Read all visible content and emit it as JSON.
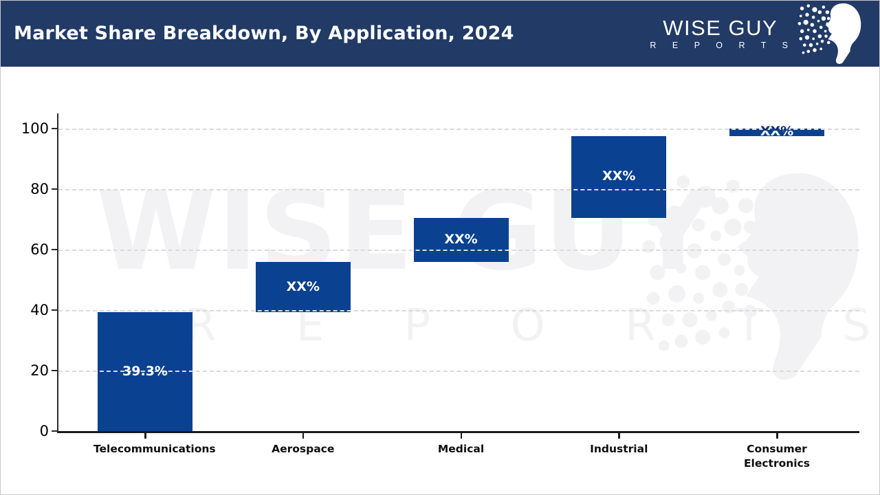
{
  "header": {
    "title": "Market Share Breakdown, By Application, 2024",
    "logo": {
      "line1": "WISE GUY",
      "line2": "R E P O R T S"
    }
  },
  "watermark": {
    "line1": "WISE GUY",
    "line2": "R E P O R T S"
  },
  "chart_data": {
    "type": "bar",
    "subtype": "waterfall",
    "title": "Market Share Breakdown, By Application, 2024",
    "categories": [
      "Telecommunications",
      "Aerospace",
      "Medical",
      "Industrial",
      "Consumer Electronics"
    ],
    "segments": [
      {
        "category": "Telecommunications",
        "start": 0,
        "end": 39.3,
        "label": "39.3%"
      },
      {
        "category": "Aerospace",
        "start": 39.3,
        "end": 55.8,
        "label": "XX%"
      },
      {
        "category": "Medical",
        "start": 55.8,
        "end": 70.5,
        "label": "XX%"
      },
      {
        "category": "Industrial",
        "start": 70.5,
        "end": 97.6,
        "label": "XX%"
      },
      {
        "category": "Consumer Electronics",
        "start": 97.6,
        "end": 100,
        "label": "XX%"
      }
    ],
    "yticks": [
      0,
      20,
      40,
      60,
      80,
      100
    ],
    "ylim": [
      0,
      105
    ],
    "grid": true,
    "grid_style": "dashed",
    "legend": "none",
    "bar_color": "#0a4191",
    "bar_label_color": "#ffffff",
    "axis_color": "#1a1a1a",
    "grid_color": "#dadada",
    "header_bg": "#213a66",
    "watermark_color": "#f2f2f5"
  }
}
